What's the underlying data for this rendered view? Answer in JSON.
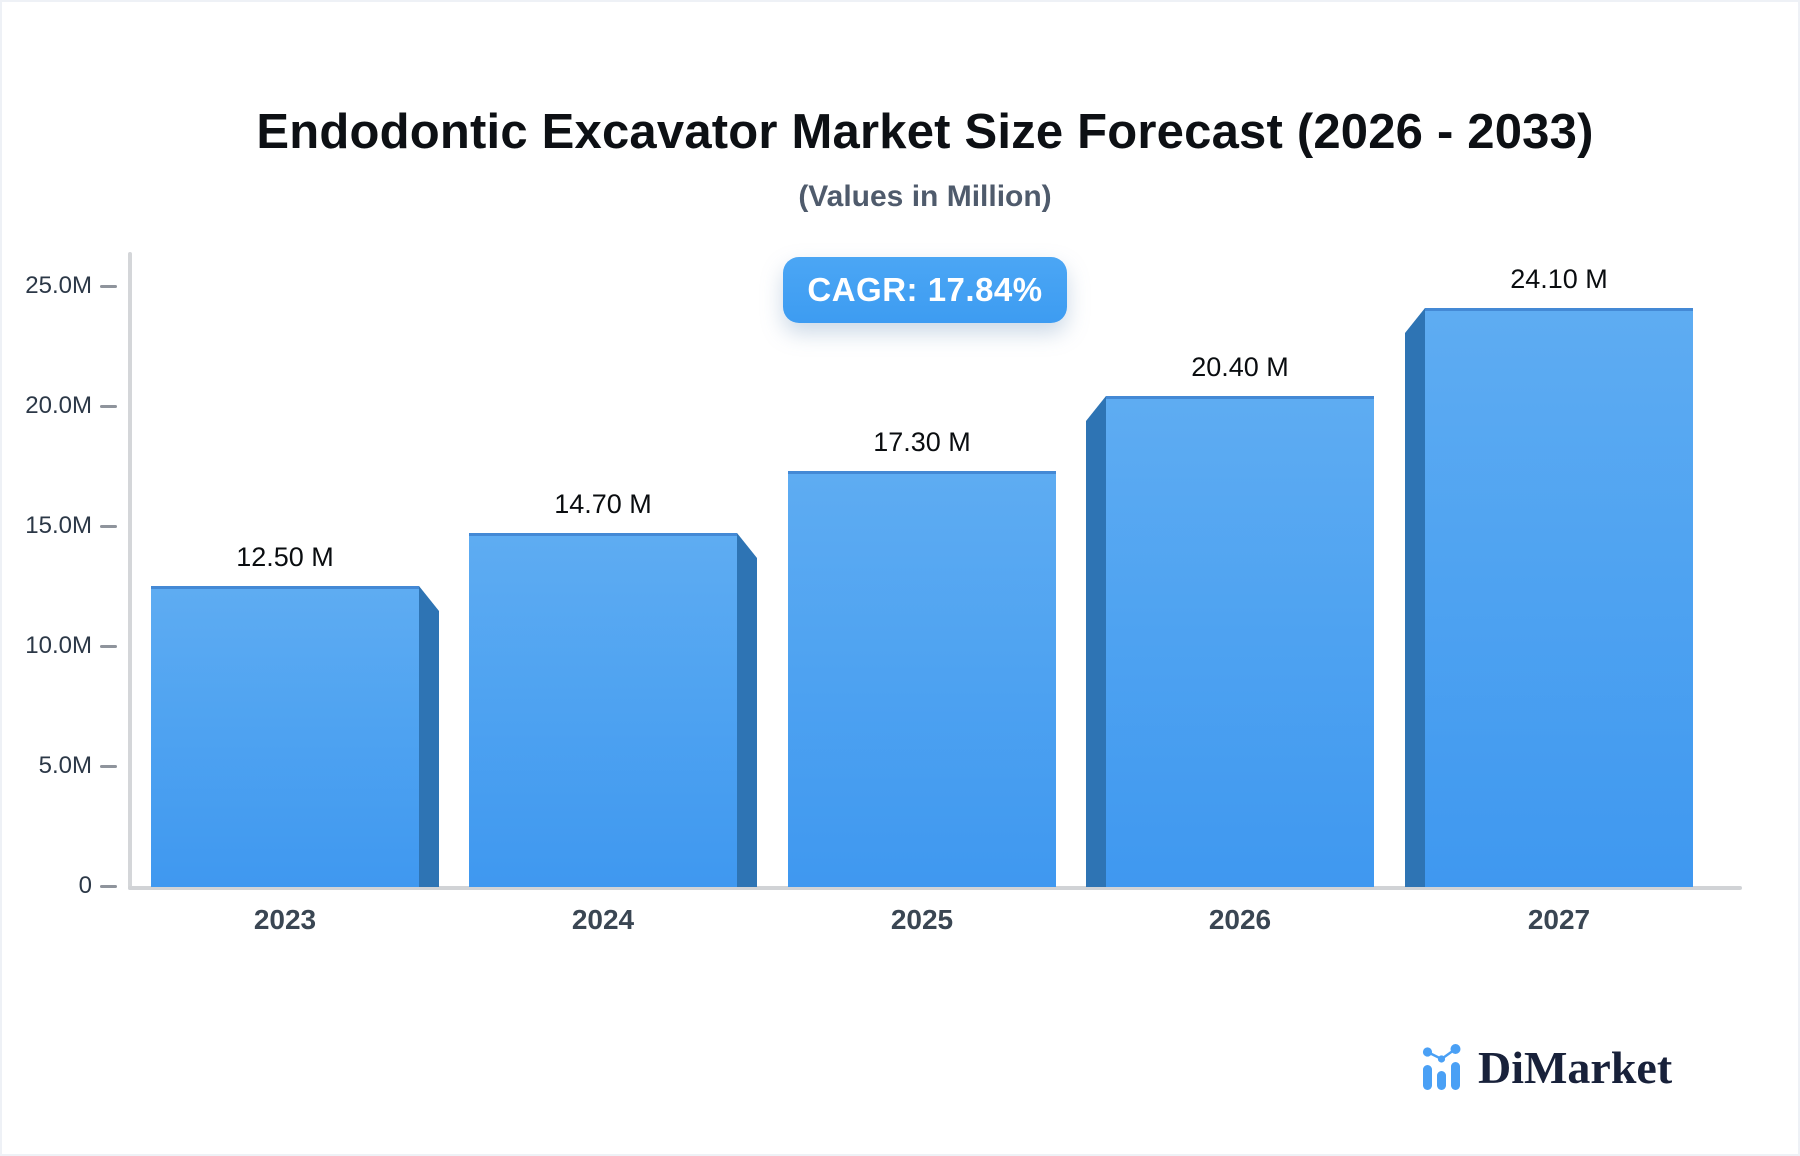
{
  "page": {
    "title": "Endodontic Excavator Market Size Forecast (2026 - 2033)",
    "subtitle": "(Values in Million)",
    "cagr_badge": "CAGR: 17.84%",
    "brand": {
      "name": "DiMarket",
      "icon": "bar-chart-logo-icon"
    }
  },
  "colors": {
    "bar_face_top": "#5EACF2",
    "bar_face_bottom": "#3F98F0",
    "bar_side": "#2E74B4",
    "bar_top_edge": "#4489D5",
    "badge_bg": "#41A1F3",
    "badge_text": "#FFFFFF",
    "axis_line": "#D4D6D9",
    "tick_mark": "#8F949C",
    "title_text": "#0D1014",
    "subtitle_text": "#4F5B6C",
    "value_label_text": "#0A0D10",
    "axis_label_text": "#2C3847",
    "brand_text": "#18213A",
    "brand_icon": "#4AA0F5"
  },
  "chart_data": {
    "type": "bar",
    "title": "Endodontic Excavator Market Size Forecast (2026 - 2033)",
    "subtitle": "(Values in Million)",
    "unit": "Million",
    "cagr_percent": 17.84,
    "categories": [
      "2023",
      "2024",
      "2025",
      "2026",
      "2027"
    ],
    "values": [
      12.5,
      14.7,
      17.3,
      20.4,
      24.1
    ],
    "bar_labels": [
      "12.50 M",
      "14.70 M",
      "17.30 M",
      "20.40 M",
      "24.10 M"
    ],
    "ylim": [
      0,
      25
    ],
    "ytick_values": [
      25,
      20,
      15,
      10,
      5,
      0
    ],
    "ytick_labels": [
      "25.0M",
      "20.0M",
      "15.0M",
      "10.0M",
      "5.0M",
      "0"
    ],
    "grid": "off",
    "legend": "none"
  }
}
